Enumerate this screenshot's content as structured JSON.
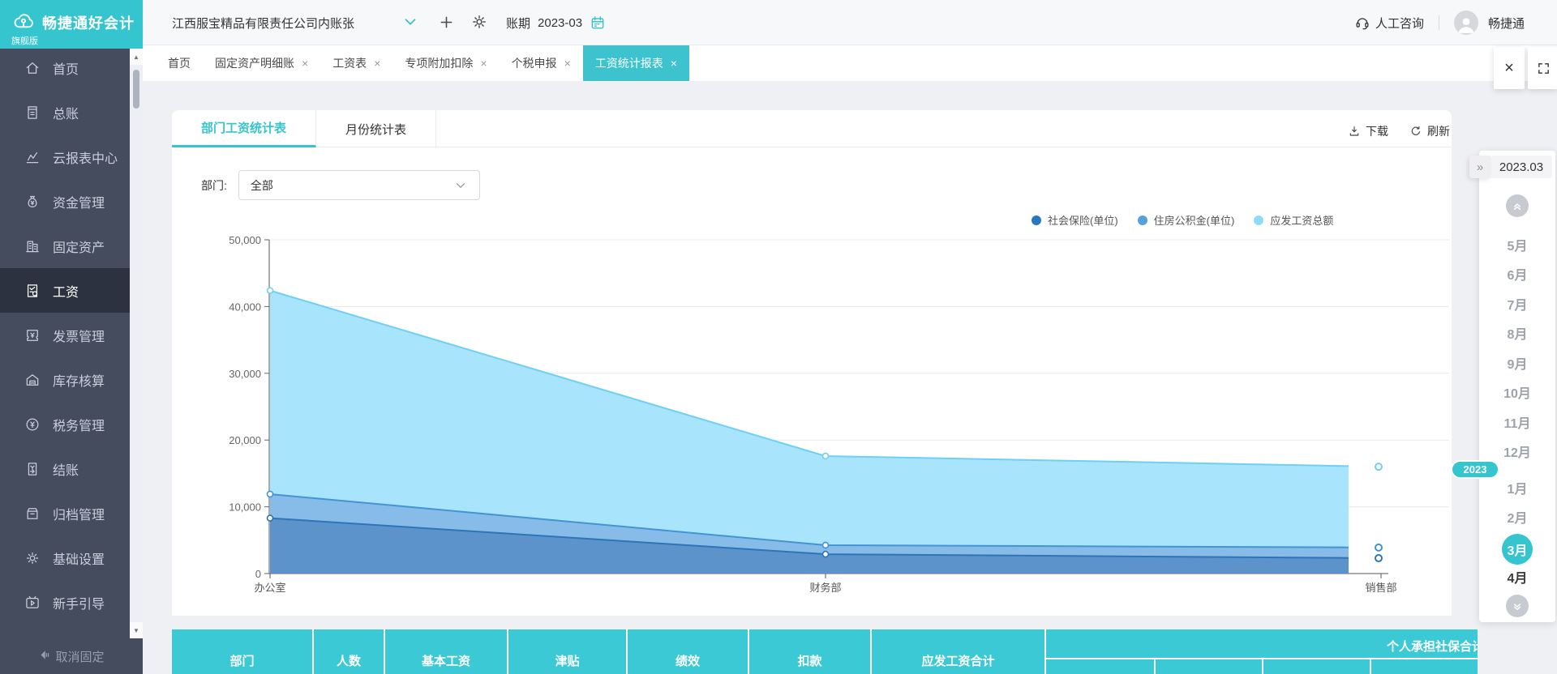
{
  "icons": {
    "close": "×",
    "collapse_right": "»",
    "scroll_up": "▲",
    "scroll_down": "▼"
  },
  "header": {
    "logo_title": "畅捷通好会计",
    "logo_subtitle": "旗舰版",
    "company_name": "江西服宝精品有限责任公司内账张",
    "period_label": "账期",
    "period_value": "2023-03",
    "support_label": "人工咨询",
    "user_name": "畅捷通"
  },
  "sidebar": {
    "items": [
      {
        "label": "首页",
        "icon": "home-icon",
        "active": false
      },
      {
        "label": "总账",
        "icon": "ledger-icon",
        "active": false
      },
      {
        "label": "云报表中心",
        "icon": "cloud-report-icon",
        "active": false
      },
      {
        "label": "资金管理",
        "icon": "funds-icon",
        "active": false
      },
      {
        "label": "固定资产",
        "icon": "fixed-assets-icon",
        "active": false
      },
      {
        "label": "工资",
        "icon": "salary-icon",
        "active": true
      },
      {
        "label": "发票管理",
        "icon": "invoice-icon",
        "active": false
      },
      {
        "label": "库存核算",
        "icon": "inventory-icon",
        "active": false
      },
      {
        "label": "税务管理",
        "icon": "tax-icon",
        "active": false
      },
      {
        "label": "结账",
        "icon": "closing-icon",
        "active": false
      },
      {
        "label": "归档管理",
        "icon": "archive-icon",
        "active": false
      },
      {
        "label": "基础设置",
        "icon": "settings-icon",
        "active": false
      },
      {
        "label": "新手引导",
        "icon": "guide-icon",
        "active": false
      }
    ],
    "unpin_label": "取消固定"
  },
  "tab_bar": {
    "tabs": [
      {
        "label": "首页",
        "closable": false,
        "active": false
      },
      {
        "label": "固定资产明细账",
        "closable": true,
        "active": false
      },
      {
        "label": "工资表",
        "closable": true,
        "active": false
      },
      {
        "label": "专项附加扣除",
        "closable": true,
        "active": false
      },
      {
        "label": "个税申报",
        "closable": true,
        "active": false
      },
      {
        "label": "工资统计报表",
        "closable": true,
        "active": true
      }
    ]
  },
  "report": {
    "subtabs": [
      {
        "label": "部门工资统计表",
        "active": true
      },
      {
        "label": "月份统计表",
        "active": false
      }
    ],
    "download_label": "下载",
    "refresh_label": "刷新",
    "department_label": "部门:",
    "department_value": "全部"
  },
  "chart_data": {
    "type": "area",
    "title": "",
    "xlabel": "",
    "ylabel": "",
    "categories": [
      "办公室",
      "财务部",
      "销售部"
    ],
    "series": [
      {
        "name": "社会保险(单位)",
        "values": [
          8300,
          2900,
          2300
        ],
        "line_color": "#2E75B6",
        "fill_color": "#5C93CB",
        "legend_color": "#2878BE"
      },
      {
        "name": "住房公积金(单位)",
        "values": [
          11900,
          4250,
          3900
        ],
        "line_color": "#4294D6",
        "fill_color": "#87BCE8",
        "legend_color": "#54A1DC"
      },
      {
        "name": "应发工资总额",
        "values": [
          42400,
          17600,
          16000
        ],
        "line_color": "#6FCFF4",
        "fill_color": "#A8E4FB",
        "legend_color": "#8FDCF8"
      }
    ],
    "ylim": [
      0,
      50000
    ],
    "ytick_step": 10000,
    "grid": true,
    "legend_position": "top-right"
  },
  "month_panel": {
    "current": "2023.03",
    "year_badge": "2023",
    "months": [
      {
        "label": "5月",
        "state": "gray"
      },
      {
        "label": "6月",
        "state": "gray"
      },
      {
        "label": "7月",
        "state": "gray"
      },
      {
        "label": "8月",
        "state": "gray"
      },
      {
        "label": "9月",
        "state": "gray"
      },
      {
        "label": "10月",
        "state": "gray"
      },
      {
        "label": "11月",
        "state": "gray"
      },
      {
        "label": "12月",
        "state": "gray"
      },
      {
        "label": "1月",
        "state": "gray"
      },
      {
        "label": "2月",
        "state": "gray"
      },
      {
        "label": "3月",
        "state": "selected"
      },
      {
        "label": "4月",
        "state": "normal"
      }
    ]
  },
  "table": {
    "columns": [
      "部门",
      "人数",
      "基本工资",
      "津贴",
      "绩效",
      "扣款",
      "应发工资合计"
    ],
    "group_header": "个人承担社保合计"
  }
}
